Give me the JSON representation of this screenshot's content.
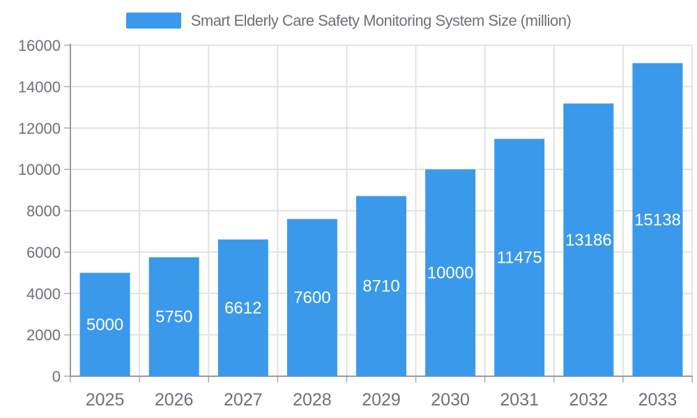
{
  "chart_data": {
    "type": "bar",
    "legend": "Smart Elderly Care Safety Monitoring System Size (million)",
    "categories": [
      "2025",
      "2026",
      "2027",
      "2028",
      "2029",
      "2030",
      "2031",
      "2032",
      "2033"
    ],
    "values": [
      5000,
      5750,
      6612,
      7600,
      8710,
      10000,
      11475,
      13186,
      15138
    ],
    "ylim": [
      0,
      16000
    ],
    "yticks": [
      0,
      2000,
      4000,
      6000,
      8000,
      10000,
      12000,
      14000,
      16000
    ],
    "grid": true,
    "legend_position": "top-center",
    "bar_label_position": "inside-center",
    "colors": {
      "bar": "#3B99EC",
      "bar_label": "#FFFFFF",
      "axis_text": "#6E7079",
      "axis_line": "#999999",
      "tick_line": "#ABABAB",
      "grid_line": "#E2E2E2",
      "background": "#FFFFFF"
    }
  }
}
